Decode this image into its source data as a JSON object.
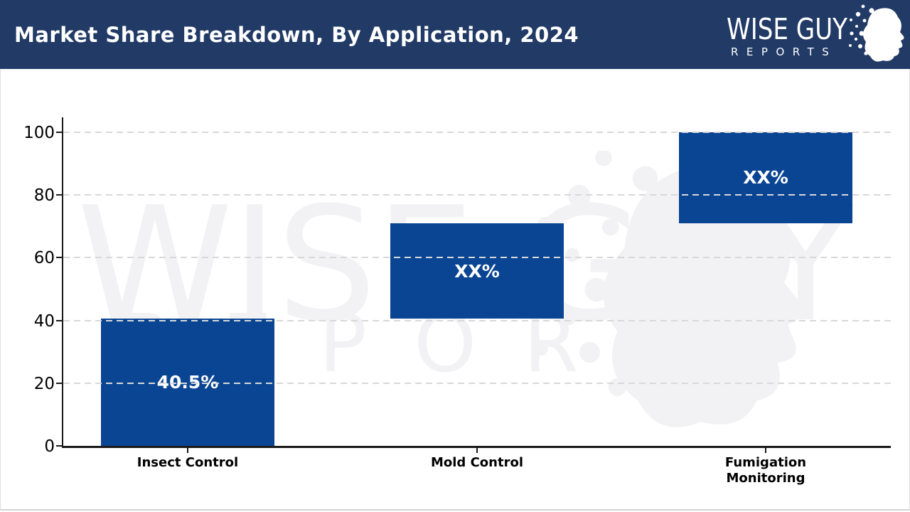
{
  "header": {
    "title": "Market Share Breakdown, By Application, 2024",
    "logo": {
      "line1": "WISE GUY",
      "line2": "REPORTS"
    }
  },
  "watermark": {
    "line1": "WISE GUY",
    "line2": "REPORTS"
  },
  "colors": {
    "header_bg": "#213a66",
    "bar": "#0a4593",
    "grid": "#d8d8d8",
    "axis": "#1a1a1a",
    "bar_label": "#ffffff",
    "watermark": "#f2f2f4"
  },
  "chart_data": {
    "type": "bar",
    "subtype": "waterfall",
    "title": "Market Share Breakdown, By Application, 2024",
    "categories": [
      "Insect Control",
      "Mold Control",
      "Fumigation Monitoring"
    ],
    "segments": [
      {
        "category": "Insect Control",
        "start": 0,
        "end": 40.5,
        "label": "40.5%"
      },
      {
        "category": "Mold Control",
        "start": 40.5,
        "end": 71,
        "label": "XX%"
      },
      {
        "category": "Fumigation Monitoring",
        "start": 71,
        "end": 100,
        "label": "XX%"
      }
    ],
    "xlabel": "",
    "ylabel": "",
    "ylim": [
      0,
      100
    ],
    "yticks": [
      0,
      20,
      40,
      60,
      80,
      100
    ],
    "grid": "horizontal-dashed",
    "legend": "none"
  }
}
